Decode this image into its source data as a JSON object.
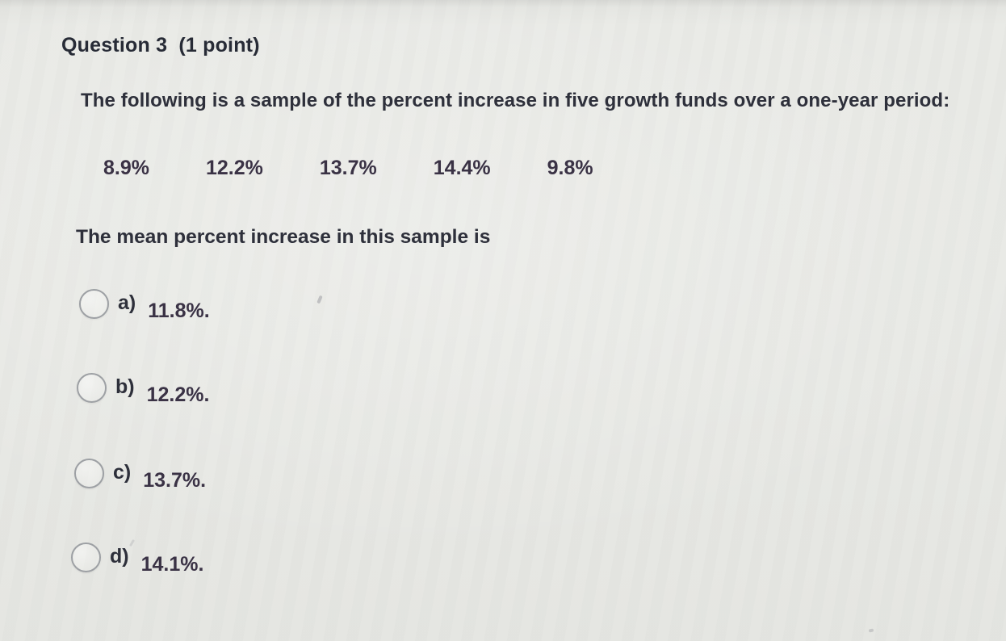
{
  "question": {
    "header_title": "Question 3",
    "header_points": "(1 point)",
    "prompt": "The following is a sample of the percent increase in five growth funds over a one-year period:",
    "sample_values": [
      "8.9%",
      "12.2%",
      "13.7%",
      "14.4%",
      "9.8%"
    ],
    "stem": "The mean percent increase in this sample is",
    "options": [
      {
        "letter": "a)",
        "text": "11.8%.",
        "selected": false
      },
      {
        "letter": "b)",
        "text": "12.2%.",
        "selected": false
      },
      {
        "letter": "c)",
        "text": "13.7%.",
        "selected": false
      },
      {
        "letter": "d)",
        "text": "14.1%.",
        "selected": false
      }
    ]
  },
  "colors": {
    "background": "#e8e9e5",
    "text_primary": "#2e303b",
    "text_header": "#272b36",
    "text_values": "#3a3245",
    "radio_border": "#9da0a4"
  }
}
